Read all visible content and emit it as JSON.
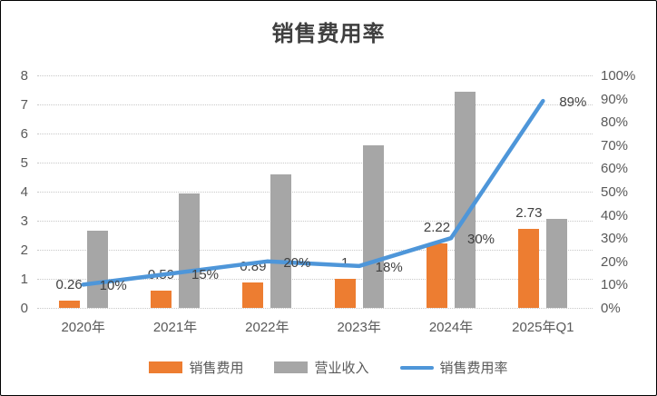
{
  "title": "销售费用率",
  "colors": {
    "expense_bar": "#ED7D31",
    "revenue_bar": "#A6A6A6",
    "ratio_line": "#4E96D9",
    "axis_text": "#595959",
    "label_text": "#404040",
    "gridline": "#c9c9c9",
    "frame_border": "#000000"
  },
  "chart_data": {
    "type": "combo-bar-line",
    "categories": [
      "2020年",
      "2021年",
      "2022年",
      "2023年",
      "2024年",
      "2025年Q1"
    ],
    "series": [
      {
        "name": "销售费用",
        "type": "bar",
        "axis": "left",
        "color": "#ED7D31",
        "values": [
          0.26,
          0.59,
          0.89,
          1,
          2.22,
          2.73
        ],
        "data_labels": [
          "0.26",
          "0.59",
          "0.89",
          "1",
          "2.22",
          "2.73"
        ]
      },
      {
        "name": "营业收入",
        "type": "bar",
        "axis": "left",
        "color": "#A6A6A6",
        "values": [
          2.67,
          3.93,
          4.6,
          5.6,
          7.45,
          3.07
        ]
      },
      {
        "name": "销售费用率",
        "type": "line",
        "axis": "right",
        "color": "#4E96D9",
        "values": [
          10,
          15,
          20,
          18,
          30,
          89
        ],
        "data_labels": [
          "10%",
          "15%",
          "20%",
          "18%",
          "30%",
          "89%"
        ]
      }
    ],
    "left_axis": {
      "min": 0,
      "max": 8,
      "step": 1,
      "ticks": [
        "0",
        "1",
        "2",
        "3",
        "4",
        "5",
        "6",
        "7",
        "8"
      ]
    },
    "right_axis": {
      "min": 0,
      "max": 100,
      "step": 10,
      "ticks": [
        "0%",
        "10%",
        "20%",
        "30%",
        "40%",
        "50%",
        "60%",
        "70%",
        "80%",
        "90%",
        "100%"
      ]
    },
    "grid": true,
    "legend_position": "bottom"
  },
  "legend": {
    "items": [
      {
        "label": "销售费用",
        "swatch": "bar",
        "color": "#ED7D31"
      },
      {
        "label": "营业收入",
        "swatch": "bar",
        "color": "#A6A6A6"
      },
      {
        "label": "销售费用率",
        "swatch": "line",
        "color": "#4E96D9"
      }
    ]
  }
}
